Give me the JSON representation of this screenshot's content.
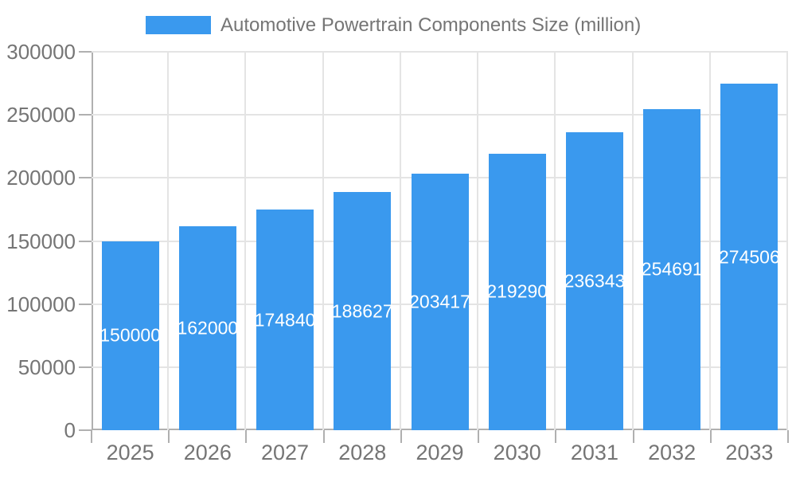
{
  "legend": {
    "label": "Automotive Powertrain Components Size (million)",
    "swatch_color": "#3a99ee"
  },
  "colors": {
    "bar": "#3a99ee",
    "grid": "#e4e4e4",
    "axis": "#b0b0b0",
    "axis_text": "#757575",
    "value_text": "#ffffff",
    "background": "#ffffff"
  },
  "chart_data": {
    "type": "bar",
    "title": "Automotive Powertrain Components Size (million)",
    "series_name": "Automotive Powertrain Components Size (million)",
    "categories": [
      "2025",
      "2026",
      "2027",
      "2028",
      "2029",
      "2030",
      "2031",
      "2032",
      "2033"
    ],
    "values": [
      150000,
      162000,
      174840,
      188627,
      203417,
      219290,
      236343,
      254691,
      274506
    ],
    "value_labels": [
      "150000",
      "162000",
      "174840",
      "188627",
      "203417",
      "219290",
      "236343",
      "254691",
      "274506"
    ],
    "xlabel": "",
    "ylabel": "",
    "ylim": [
      0,
      300000
    ],
    "ytick_step": 50000,
    "ytick_labels": [
      "0",
      "50000",
      "100000",
      "150000",
      "200000",
      "250000",
      "300000"
    ],
    "grid": true,
    "legend_position": "top",
    "bar_color": "#3a99ee",
    "value_label_position": "center-inside"
  }
}
